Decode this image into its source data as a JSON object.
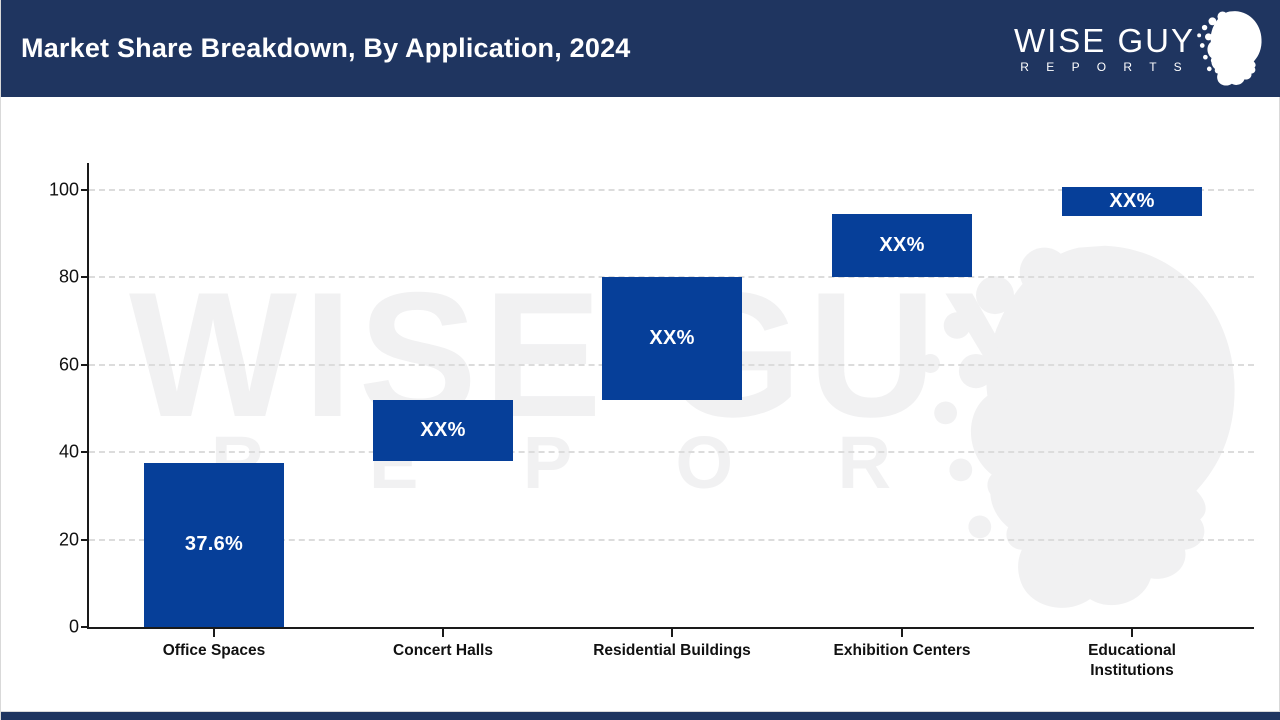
{
  "header": {
    "title": "Market Share Breakdown, By Application, 2024",
    "brand_name": "WISE GUY",
    "brand_tagline": "R E P O R T S",
    "bg_color": "#1f3560"
  },
  "watermark": {
    "line1": "WISE GUY",
    "line2": "R E P O R T S",
    "color": "#f1f1f2"
  },
  "chart_data": {
    "type": "bar",
    "subtype": "waterfall",
    "title": "Market Share Breakdown, By Application, 2024",
    "categories": [
      "Office Spaces",
      "Concert Halls",
      "Residential Buildings",
      "Exhibition Centers",
      "Educational Institutions"
    ],
    "segments": [
      {
        "category": "Office Spaces",
        "start": 0,
        "end": 37.6,
        "label": "37.6%"
      },
      {
        "category": "Concert Halls",
        "start": 38,
        "end": 52,
        "label": "XX%"
      },
      {
        "category": "Residential Buildings",
        "start": 52,
        "end": 80,
        "label": "XX%"
      },
      {
        "category": "Exhibition Centers",
        "start": 80,
        "end": 94.5,
        "label": "XX%"
      },
      {
        "category": "Educational Institutions",
        "start": 94,
        "end": 100.6,
        "label": "XX%"
      }
    ],
    "xlabel": "",
    "ylabel": "",
    "ylim": [
      0,
      105
    ],
    "yticks": [
      0,
      20,
      40,
      60,
      80,
      100
    ],
    "grid": "horizontal-dashed",
    "legend": "none",
    "bar_color": "#063f99",
    "bar_label_color": "#ffffff",
    "axis_color": "#1a1a1a",
    "grid_color": "#dcdcdc"
  }
}
